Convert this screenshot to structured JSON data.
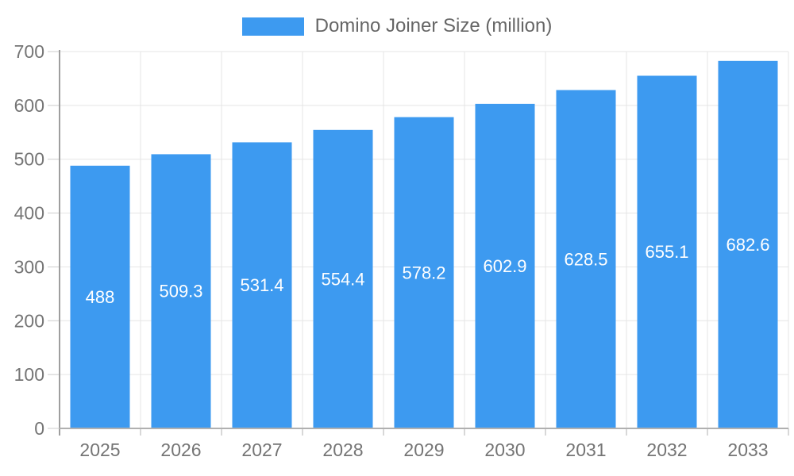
{
  "page": {
    "background_color": "#ffffff"
  },
  "legend": {
    "label": "Domino Joiner Size (million)",
    "position": "top"
  },
  "chart_data": {
    "type": "bar",
    "title": "",
    "xlabel": "",
    "ylabel": "",
    "categories": [
      "2025",
      "2026",
      "2027",
      "2028",
      "2029",
      "2030",
      "2031",
      "2032",
      "2033"
    ],
    "series": [
      {
        "name": "Domino Joiner Size (million)",
        "color": "#3D9AF0",
        "values": [
          488,
          509.3,
          531.4,
          554.4,
          578.2,
          602.9,
          628.5,
          655.1,
          682.6
        ],
        "labels": [
          "488",
          "509.3",
          "531.4",
          "554.4",
          "578.2",
          "602.9",
          "628.5",
          "655.1",
          "682.6"
        ]
      }
    ],
    "ylim": [
      0,
      700
    ],
    "y_tick_step": 100,
    "y_tick_labels": [
      "0",
      "100",
      "200",
      "300",
      "400",
      "500",
      "600",
      "700"
    ],
    "grid": true,
    "legend_position": "top",
    "value_label_color": "#ffffff",
    "value_label_position": "inside-center",
    "axis_text_color": "#757575",
    "grid_color": "#e5e5e5",
    "y_axis_line_color": "#9e9e9e",
    "x_axis_line_color": "#b0b0b0",
    "tick_color": "#b0b0b0",
    "y_tick_dash_color": "#cccccc"
  }
}
